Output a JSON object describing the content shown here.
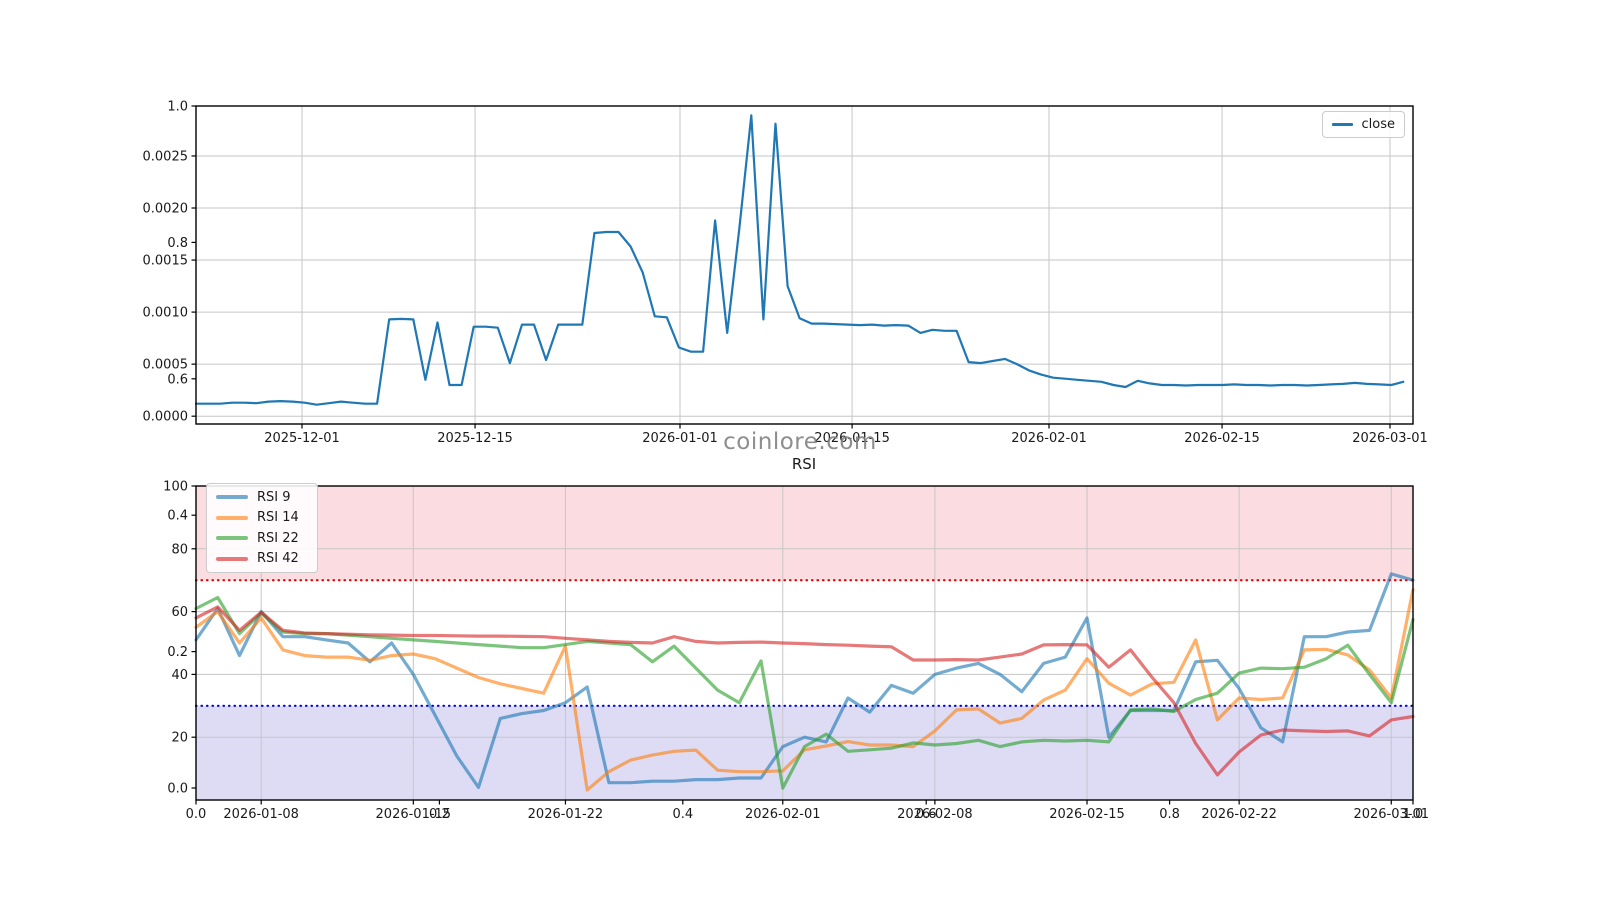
{
  "watermark": "coinlore.com",
  "colors": {
    "close_line": "#1f77b4",
    "rsi9": "#1f77b4",
    "rsi14": "#ff7f0e",
    "rsi22": "#2ca02c",
    "rsi42": "#d62728",
    "overbought_band": "#fbdce1",
    "oversold_band": "#dedcf5",
    "overbought_line": "#e60000",
    "oversold_line": "#0000dd",
    "grid": "#c6c6c6",
    "spine": "#000000",
    "tick_text": "#1a1a1a",
    "watermark_gray": "#828282"
  },
  "overlay_axis": {
    "y_ticks": [
      "1.0",
      "0.8",
      "0.6",
      "0.4",
      "0.2",
      "0.0"
    ],
    "x_ticks": [
      "0.0",
      "0.2",
      "0.4",
      "0.6",
      "0.8",
      "1.0"
    ]
  },
  "chart_data": [
    {
      "id": "price",
      "type": "line",
      "title": "",
      "legend_position": "upper right",
      "grid": true,
      "ylim": [
        -7.5e-05,
        0.00298
      ],
      "y_ticks": [
        {
          "label": "0.0000",
          "v": 0.0
        },
        {
          "label": "0.0005",
          "v": 0.0005
        },
        {
          "label": "0.0010",
          "v": 0.001
        },
        {
          "label": "0.0015",
          "v": 0.0015
        },
        {
          "label": "0.0020",
          "v": 0.002
        },
        {
          "label": "0.0025",
          "v": 0.0025
        }
      ],
      "x_ticks": [
        {
          "label": "2025-12-01",
          "t": 0.0871
        },
        {
          "label": "2025-12-15",
          "t": 0.2293
        },
        {
          "label": "2026-01-01",
          "t": 0.3977
        },
        {
          "label": "2026-01-15",
          "t": 0.5391
        },
        {
          "label": "2026-02-01",
          "t": 0.7009
        },
        {
          "label": "2026-02-15",
          "t": 0.8431
        },
        {
          "label": "2026-03-01",
          "t": 0.9811
        }
      ],
      "x_range_note": "daily closes 2025-11-22 to 2026-03-02",
      "series": [
        {
          "name": "close",
          "color": "#1f77b4",
          "width": 2.2,
          "opacity": 1,
          "t0": 0,
          "t1": 0.992,
          "values": [
            0.00012,
            0.00012,
            0.00012,
            0.00013,
            0.00013,
            0.000125,
            0.00014,
            0.000145,
            0.00014,
            0.00013,
            0.00011,
            0.000125,
            0.00014,
            0.00013,
            0.00012,
            0.00012,
            0.00093,
            0.000935,
            0.00093,
            0.00035,
            0.0009,
            0.0003,
            0.0003,
            0.00086,
            0.00086,
            0.00085,
            0.00051,
            0.00088,
            0.00088,
            0.00054,
            0.00088,
            0.00088,
            0.00088,
            0.00176,
            0.00177,
            0.00177,
            0.00163,
            0.00138,
            0.00096,
            0.00095,
            0.00066,
            0.00062,
            0.00062,
            0.00188,
            0.0008,
            0.0018,
            0.00289,
            0.00093,
            0.00281,
            0.00125,
            0.00094,
            0.00089,
            0.00089,
            0.000885,
            0.00088,
            0.000875,
            0.00088,
            0.00087,
            0.000875,
            0.00087,
            0.0008,
            0.00083,
            0.00082,
            0.00082,
            0.00052,
            0.00051,
            0.00053,
            0.00055,
            0.0005,
            0.00044,
            0.0004,
            0.00037,
            0.00036,
            0.00035,
            0.00034,
            0.00033,
            0.0003,
            0.00028,
            0.00034,
            0.000315,
            0.0003,
            0.0003,
            0.000295,
            0.0003,
            0.0003,
            0.0003,
            0.000305,
            0.0003,
            0.0003,
            0.000295,
            0.0003,
            0.0003,
            0.000295,
            0.0003,
            0.000305,
            0.00031,
            0.00032,
            0.00031,
            0.000305,
            0.0003,
            0.00033
          ]
        }
      ]
    },
    {
      "id": "rsi",
      "type": "line",
      "title": "RSI",
      "legend_position": "upper left",
      "grid": true,
      "ylim": [
        0,
        100
      ],
      "y_ticks": [
        {
          "label": "100",
          "v": 100
        },
        {
          "label": "80",
          "v": 80
        },
        {
          "label": "60",
          "v": 60
        },
        {
          "label": "40",
          "v": 40
        },
        {
          "label": "20",
          "v": 20
        }
      ],
      "x_ticks": [
        {
          "label": "2026-01-08",
          "t": 0.05357
        },
        {
          "label": "2026-01-15",
          "t": 0.17857
        },
        {
          "label": "2026-01-22",
          "t": 0.30357
        },
        {
          "label": "2026-02-01",
          "t": 0.48214
        },
        {
          "label": "2026-02-08",
          "t": 0.60714
        },
        {
          "label": "2026-02-15",
          "t": 0.73214
        },
        {
          "label": "2026-02-22",
          "t": 0.85714
        },
        {
          "label": "2026-03-01",
          "t": 0.98214
        }
      ],
      "x_range_note": "daily RSI 2026-01-05 to 2026-03-02",
      "bands": [
        {
          "from": 70,
          "to": 100,
          "color": "#fbdce1"
        },
        {
          "from": 0,
          "to": 30,
          "color": "#dedcf5"
        }
      ],
      "hlines": [
        {
          "v": 70,
          "color": "#e60000"
        },
        {
          "v": 30,
          "color": "#0000dd"
        }
      ],
      "series": [
        {
          "name": "RSI 9",
          "color": "#1f77b4",
          "width": 3.2,
          "opacity": 0.62,
          "t0": 0,
          "t1": 1,
          "values": [
            51,
            61,
            46,
            60,
            52,
            52,
            51,
            50,
            44,
            50,
            40,
            27,
            14,
            4,
            26,
            27.5,
            28.5,
            31,
            36,
            5.5,
            5.5,
            6,
            6,
            6.5,
            6.5,
            7,
            7,
            17,
            20,
            18.5,
            32.5,
            28,
            36.5,
            34,
            40,
            42,
            43.5,
            40,
            34.5,
            43.5,
            45.5,
            58,
            20,
            28.5,
            28.5,
            28.5,
            44,
            44.5,
            35.5,
            23,
            18.5,
            52,
            52,
            53.5,
            54,
            72,
            70
          ]
        },
        {
          "name": "RSI 14",
          "color": "#ff7f0e",
          "width": 3.2,
          "opacity": 0.62,
          "t0": 0,
          "t1": 1,
          "values": [
            55,
            60,
            50,
            58,
            47.8,
            46,
            45.5,
            45.5,
            44.5,
            46,
            46.5,
            45,
            42,
            39,
            37,
            35.5,
            34,
            49,
            3.2,
            9,
            12.7,
            14.3,
            15.5,
            15.9,
            9.5,
            9,
            9,
            9.3,
            16,
            17.2,
            18.6,
            17.5,
            17.5,
            17,
            22,
            28.7,
            29,
            24.5,
            26,
            31.8,
            35,
            45,
            37.2,
            33.4,
            37,
            37.5,
            51,
            25.5,
            32.5,
            32,
            32.5,
            47.8,
            48,
            46.2,
            41.4,
            32.5,
            67
          ]
        },
        {
          "name": "RSI 22",
          "color": "#2ca02c",
          "width": 3.2,
          "opacity": 0.62,
          "t0": 0,
          "t1": 1,
          "values": [
            61,
            64.5,
            53,
            59.5,
            53.5,
            53,
            53,
            52.5,
            52,
            51.5,
            51,
            50.5,
            50,
            49.5,
            49,
            48.5,
            48.5,
            49.5,
            50.5,
            50,
            49.5,
            44,
            49,
            42,
            35,
            31,
            44.3,
            3.8,
            17,
            21,
            15.5,
            16,
            16.5,
            18.2,
            17.5,
            18,
            19,
            17,
            18.5,
            19,
            18.8,
            19,
            18.5,
            28.7,
            29,
            28.2,
            32,
            34,
            40.4,
            42,
            41.8,
            42.3,
            45,
            49.3,
            40,
            31,
            57.5
          ]
        },
        {
          "name": "RSI 42",
          "color": "#d62728",
          "width": 3.2,
          "opacity": 0.62,
          "t0": 0,
          "t1": 1,
          "values": [
            58,
            61.5,
            54,
            59.8,
            54,
            53.2,
            53,
            52.8,
            52.6,
            52.5,
            52.4,
            52.4,
            52.3,
            52.2,
            52.2,
            52.1,
            52,
            51.5,
            51,
            50.5,
            50.2,
            50,
            52,
            50.5,
            50,
            50.2,
            50.3,
            50,
            49.8,
            49.5,
            49.3,
            49,
            48.8,
            44.6,
            44.6,
            44.7,
            44.6,
            45.5,
            46.5,
            49.4,
            49.5,
            49.4,
            42.3,
            47.8,
            39,
            31,
            18,
            8,
            15.3,
            20.7,
            22.3,
            22,
            21.8,
            22,
            20.4,
            25.5,
            26.6
          ]
        }
      ]
    }
  ]
}
